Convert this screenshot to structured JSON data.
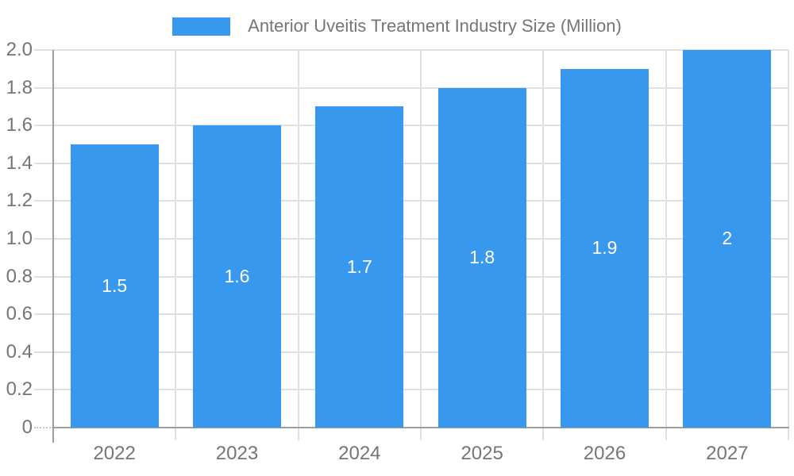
{
  "legend": {
    "label": "Anterior Uveitis Treatment Industry Size (Million)",
    "position": "top-center"
  },
  "chart_data": {
    "type": "bar",
    "title": "Anterior Uveitis Treatment Industry Size (Million)",
    "categories": [
      "2022",
      "2023",
      "2024",
      "2025",
      "2026",
      "2027"
    ],
    "values": [
      1.5,
      1.6,
      1.7,
      1.8,
      1.9,
      2
    ],
    "value_labels": [
      "1.5",
      "1.6",
      "1.7",
      "1.8",
      "1.9",
      "2"
    ],
    "xlabel": "",
    "ylabel": "",
    "ylim": [
      0,
      2.0
    ],
    "yticks": [
      0,
      0.2,
      0.4,
      0.6,
      0.8,
      1.0,
      1.2,
      1.4,
      1.6,
      1.8,
      2.0
    ],
    "ytick_labels": [
      "0",
      "0.2",
      "0.4",
      "0.6",
      "0.8",
      "1.0",
      "1.2",
      "1.4",
      "1.6",
      "1.8",
      "2.0"
    ],
    "grid": "horizontal and vertical gridlines on",
    "legend_position": "top-center",
    "bar_labels_inside": true
  },
  "colors": {
    "bar": "#3898ee",
    "bar_label": "#ffffff",
    "axis_text": "#757575",
    "title_text": "#757575",
    "gridline": "#e0e0e0",
    "axis_line": "#9e9e9e",
    "background": "#ffffff"
  }
}
